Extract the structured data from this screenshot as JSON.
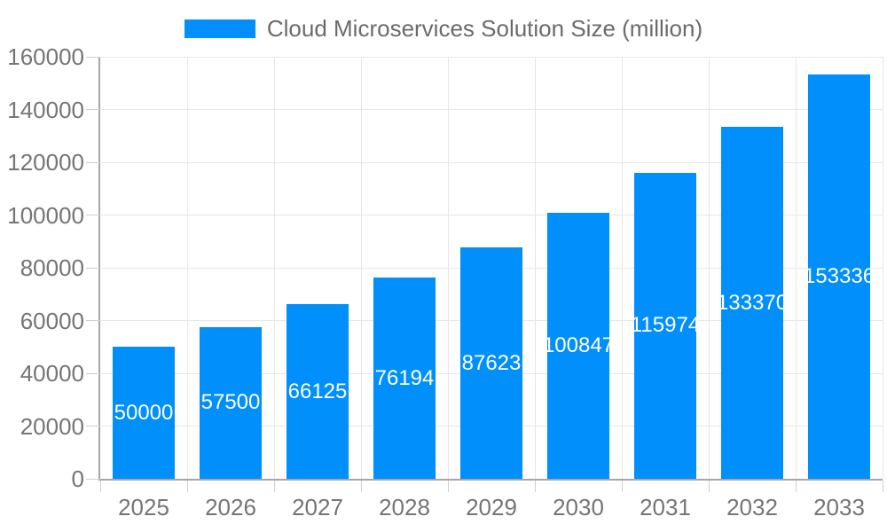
{
  "legend": {
    "label": "Cloud Microservices Solution Size (million)"
  },
  "chart_data": {
    "type": "bar",
    "title": "Cloud Microservices Solution Size (million)",
    "categories": [
      "2025",
      "2026",
      "2027",
      "2028",
      "2029",
      "2030",
      "2031",
      "2032",
      "2033"
    ],
    "series": [
      {
        "name": "Cloud Microservices Solution Size (million)",
        "color": "#008FFB",
        "values": [
          50000,
          57500,
          66125,
          76194,
          87623,
          100847,
          115974,
          133370,
          153336
        ]
      }
    ],
    "value_labels_visible": true,
    "value_label_position": "middle-of-bar",
    "xlabel": "",
    "ylabel": "",
    "ylim": [
      0,
      160000
    ],
    "ytick_step": 20000,
    "yticks": [
      0,
      20000,
      40000,
      60000,
      80000,
      100000,
      120000,
      140000,
      160000
    ],
    "grid": true,
    "legend_position": "top"
  },
  "colors": {
    "bar": "#008FFB",
    "grid_line": "#e7e7e7",
    "axis_line": "#a6a6a6",
    "tick_mark": "#cfcfcf",
    "tick_label": "#757575",
    "legend_text": "#6b6b6b",
    "value_label": "#ffffff",
    "background": "#ffffff"
  }
}
